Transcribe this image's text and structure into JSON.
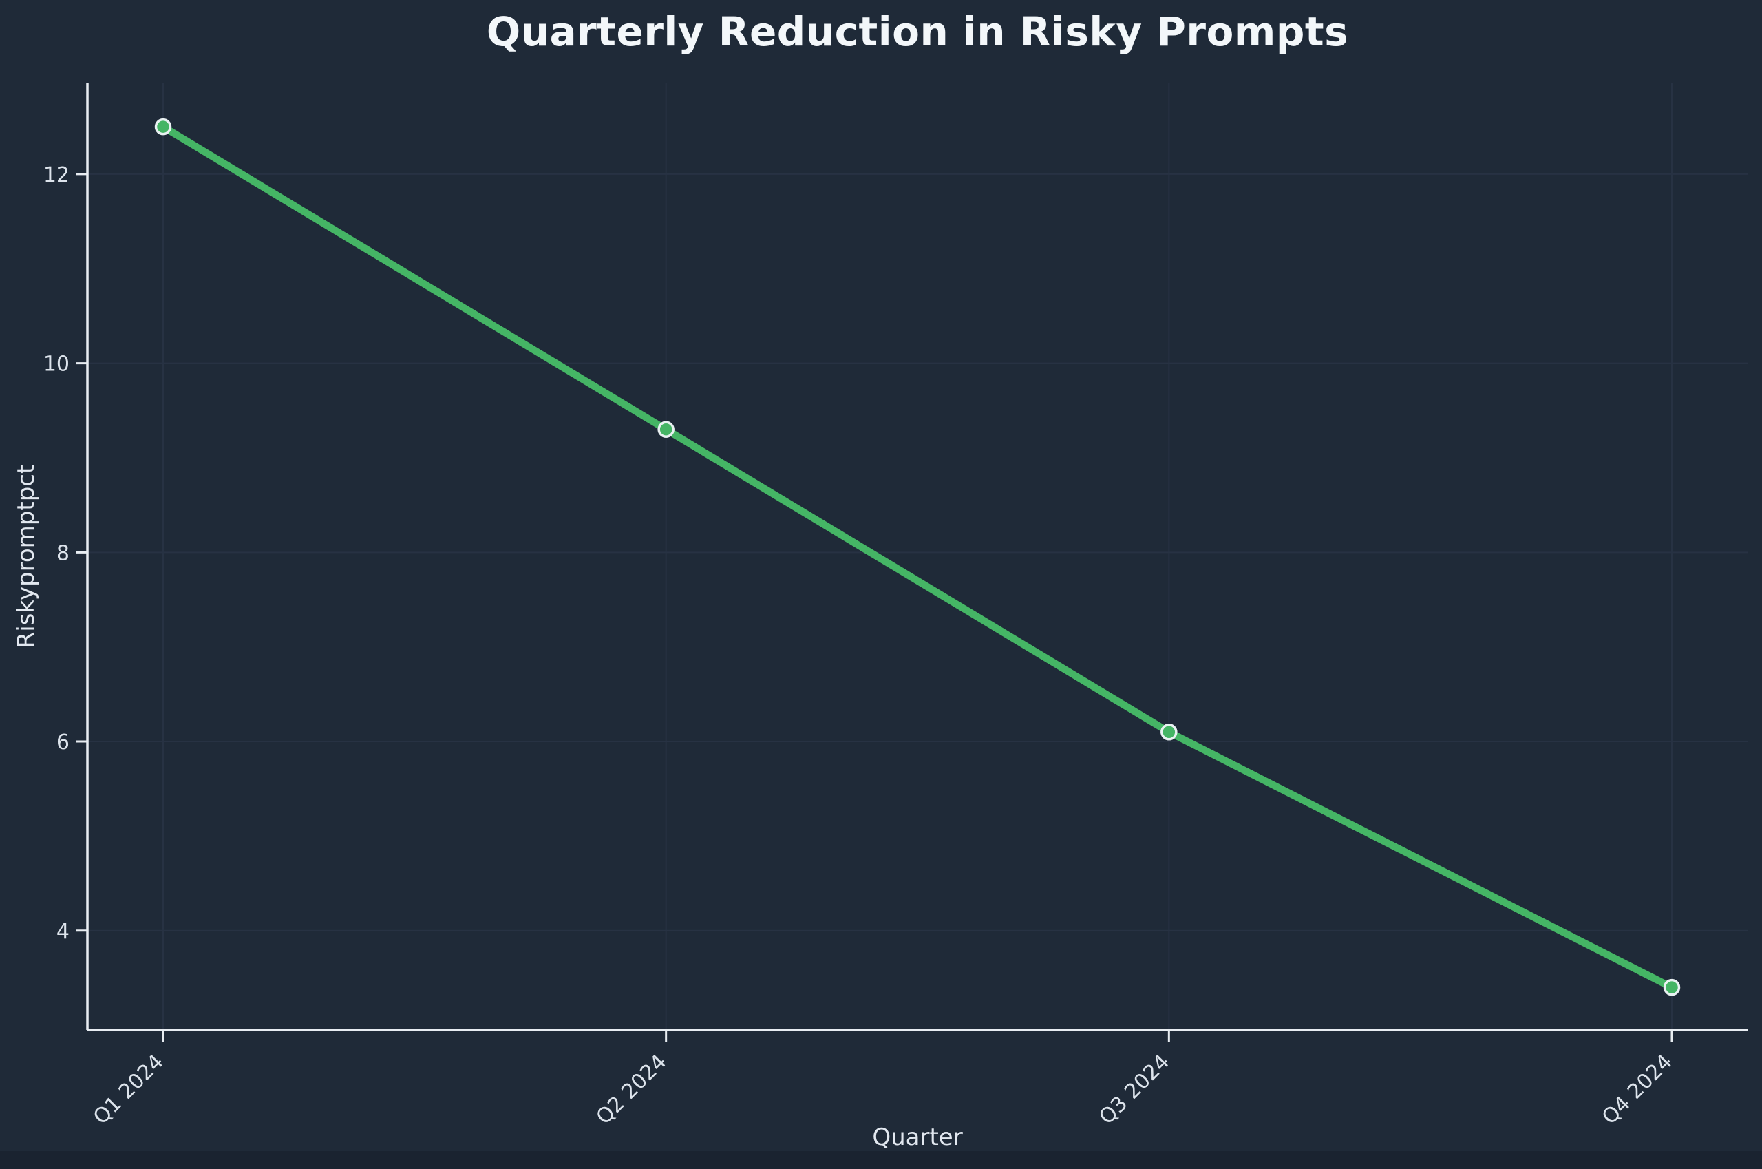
{
  "chart_data": {
    "type": "line",
    "title": "Quarterly Reduction in Risky Prompts",
    "xlabel": "Quarter",
    "ylabel": "Riskypromptpct",
    "categories": [
      "Q1 2024",
      "Q2 2024",
      "Q3 2024",
      "Q4 2024"
    ],
    "series": [
      {
        "name": "Riskypromptpct",
        "values": [
          12.5,
          9.3,
          6.1,
          3.4
        ]
      }
    ],
    "yticks": [
      4,
      6,
      8,
      10,
      12
    ],
    "ylim": [
      2.95,
      12.96
    ],
    "x_tick_rotation_deg": 45,
    "grid": true,
    "legend": false,
    "colors": {
      "background": "#1f2a38",
      "bottom_strip": "#1a2330",
      "line": "#45b565",
      "marker_fill": "#45b565",
      "marker_edge": "#e9f1f2",
      "axis": "#e8edf2",
      "grid": "#273243",
      "tick_label": "#dde4ec",
      "axis_label": "#e2e8f0",
      "title": "#f3f7fa"
    }
  }
}
